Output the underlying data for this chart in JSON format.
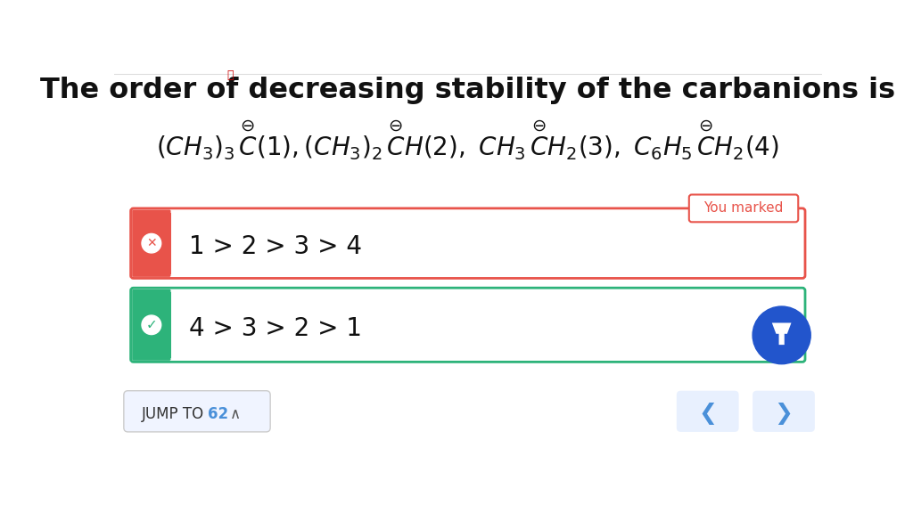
{
  "background_color": "#ffffff",
  "title_line1": "The order of decreasing stability of the carbanions is",
  "option1_text": "1 > 2 > 3 > 4",
  "option1_bg": "#ffffff",
  "option1_border": "#e8534a",
  "option1_left_color": "#e8534a",
  "option1_label": "You marked",
  "option2_text": "4 > 3 > 2 > 1",
  "option2_bg": "#ffffff",
  "option2_border": "#2db37a",
  "option2_left_color": "#2db37a",
  "jump_text": "JUMP TO",
  "jump_number": "62",
  "jump_number_color": "#4a90d9",
  "page_bg": "#ffffff",
  "filter_button_color": "#2255cc",
  "nav_button_color": "#e8f0fe",
  "nav_arrow_color": "#4a90d9"
}
